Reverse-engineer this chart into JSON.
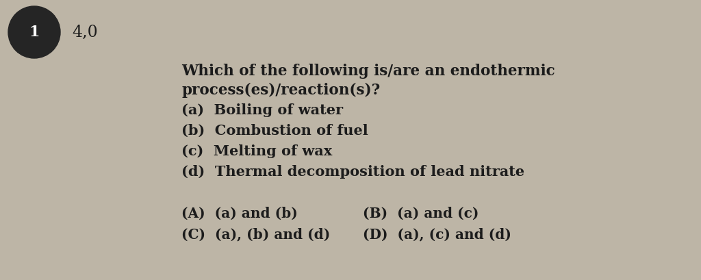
{
  "background_color": "#bdb5a6",
  "circle_color": "#252525",
  "circle_text": "1",
  "circle_text_color": "#ffffff",
  "badge_label": "4,0",
  "question_line1": "Which of the following is/are an endothermic",
  "question_line2": "process(es)/reaction(s)?",
  "options": [
    "(a)  Boiling of water",
    "(b)  Combustion of fuel",
    "(c)  Melting of wax",
    "(d)  Thermal decomposition of lead nitrate"
  ],
  "answers_row1_col1": "(A)  (a) and (b)",
  "answers_row1_col2": "(B)  (a) and (c)",
  "answers_row2_col1": "(C)  (a), (b) and (d)",
  "answers_row2_col2": "(D)  (a), (c) and (d)",
  "text_color": "#1c1c1c",
  "font_family": "DejaVu Serif"
}
